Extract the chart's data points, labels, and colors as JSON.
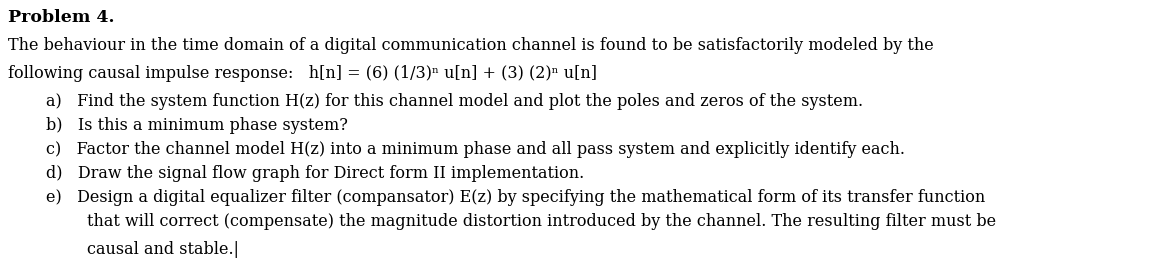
{
  "background_color": "#ffffff",
  "title": "Problem 4.",
  "line1": "The behaviour in the time domain of a digital communication channel is found to be satisfactorily modeled by the",
  "line2": "following causal impulse response:   h[n] = (6) (1/3)ⁿ u[n] + (3) (2)ⁿ u[n]",
  "item_a": "a)   Find the system function H(z) for this channel model and plot the poles and zeros of the system.",
  "item_b": "b)   Is this a minimum phase system?",
  "item_c": "c)   Factor the channel model H(z) into a minimum phase and all pass system and explicitly identify each.",
  "item_d": "d)   Draw the signal flow graph for Direct form II implementation.",
  "item_e1": "e)   Design a digital equalizer filter (compansator) E(z) by specifying the mathematical form of its transfer function",
  "item_e2": "        that will correct (compensate) the magnitude distortion introduced by the channel. The resulting filter must be",
  "item_e3": "        causal and stable.|",
  "font_size_title": 12.5,
  "font_size_body": 11.5,
  "text_color": "#000000",
  "fig_width": 11.49,
  "fig_height": 2.71,
  "dpi": 100
}
